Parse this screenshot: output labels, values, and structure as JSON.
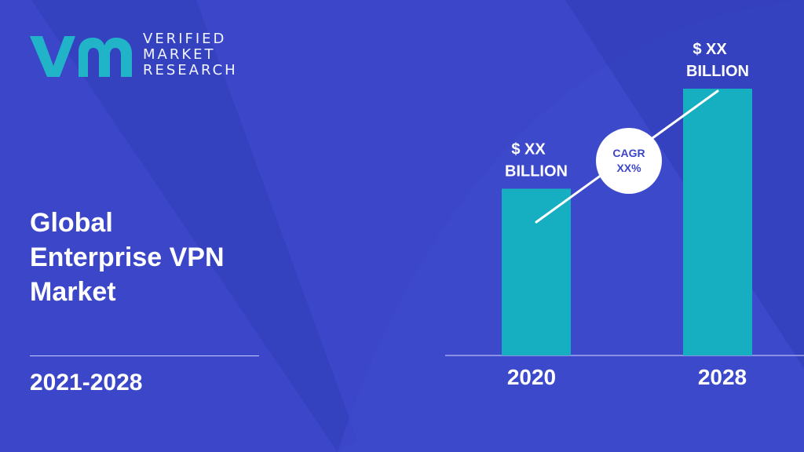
{
  "brand": {
    "name_lines": [
      "VERIFIED",
      "MARKET",
      "RESEARCH"
    ],
    "logo_mark": "VMR",
    "logo_color": "#21b4c8"
  },
  "report": {
    "title_lines": [
      "Global",
      "Enterprise VPN",
      "Market"
    ],
    "period": "2021-2028"
  },
  "colors": {
    "background": "#3b46c8",
    "bar": "#16afc2",
    "text": "#ffffff",
    "badge_text": "#3b46c8"
  },
  "chart_data": {
    "type": "bar",
    "categories": [
      "2020",
      "2028"
    ],
    "values": [
      4,
      6.4
    ],
    "value_labels": [
      [
        "$ XX",
        "BILLION"
      ],
      [
        "$ XX",
        "BILLION"
      ]
    ],
    "cagr_label": [
      "CAGR",
      "XX%"
    ],
    "title": "",
    "xlabel": "",
    "ylabel": "",
    "grid": false,
    "legend": "none"
  }
}
